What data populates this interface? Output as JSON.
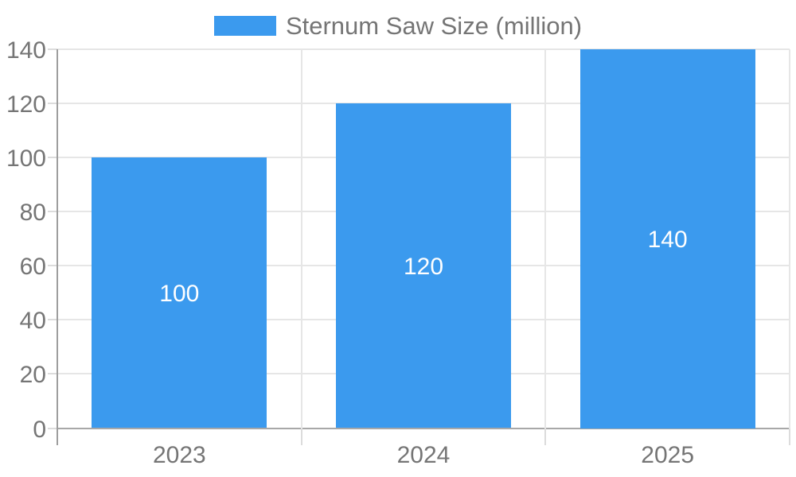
{
  "chart_data": {
    "type": "bar",
    "title": "Sternum Saw Size (million)",
    "legend": {
      "label": "Sternum Saw Size (million)",
      "position": "top"
    },
    "categories": [
      "2023",
      "2024",
      "2025"
    ],
    "series": [
      {
        "name": "Sternum Saw Size (million)",
        "values": [
          100,
          120,
          140
        ]
      }
    ],
    "bar_value_labels": [
      "100",
      "120",
      "140"
    ],
    "xlabel": "",
    "ylabel": "",
    "ylim": [
      0,
      140
    ],
    "yticks": [
      0,
      20,
      40,
      60,
      80,
      100,
      120,
      140
    ],
    "grid": true,
    "legend_position": "top",
    "colors": {
      "bar": "#3B9AEE",
      "bar_label": "#FFFFFF",
      "axis_text": "#757575",
      "legend_text": "#757575",
      "gridline": "#E6E6E6",
      "tick": "#DCDCDC",
      "y_axis_line": "#9E9E9E",
      "x_baseline": "#A8A8A8",
      "background": "#FFFFFF"
    }
  }
}
